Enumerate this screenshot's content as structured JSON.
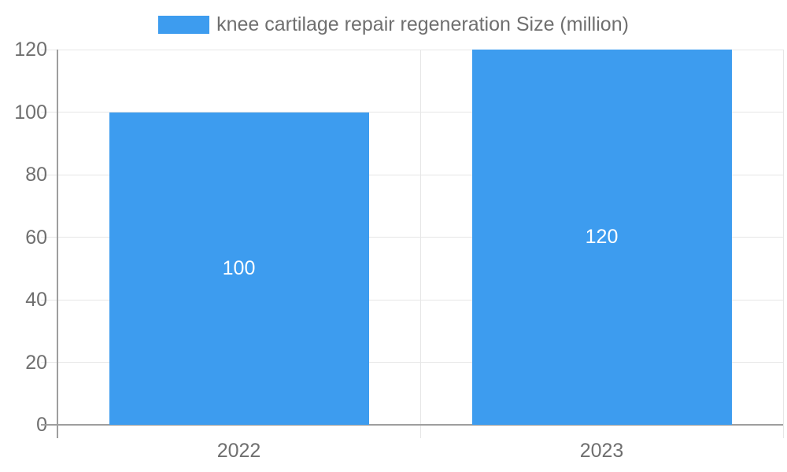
{
  "chart_data": {
    "type": "bar",
    "title": "",
    "categories": [
      "2022",
      "2023"
    ],
    "series": [
      {
        "name": "knee cartilage repair regeneration Size (million)",
        "values": [
          100,
          120
        ]
      }
    ],
    "bar_value_labels": [
      "100",
      "120"
    ],
    "xlabel": "",
    "ylabel": "",
    "ylim": [
      0,
      120
    ],
    "yticks": [
      0,
      20,
      40,
      60,
      80,
      100,
      120
    ],
    "grid": true,
    "legend_position": "top",
    "colors": {
      "bar": "#3D9CEF",
      "grid": "#E6E6E6",
      "axis": "#9E9E9E",
      "label_text": "#6F6F6F",
      "bar_label_text": "#FFFFFF",
      "background": "#FFFFFF"
    }
  }
}
